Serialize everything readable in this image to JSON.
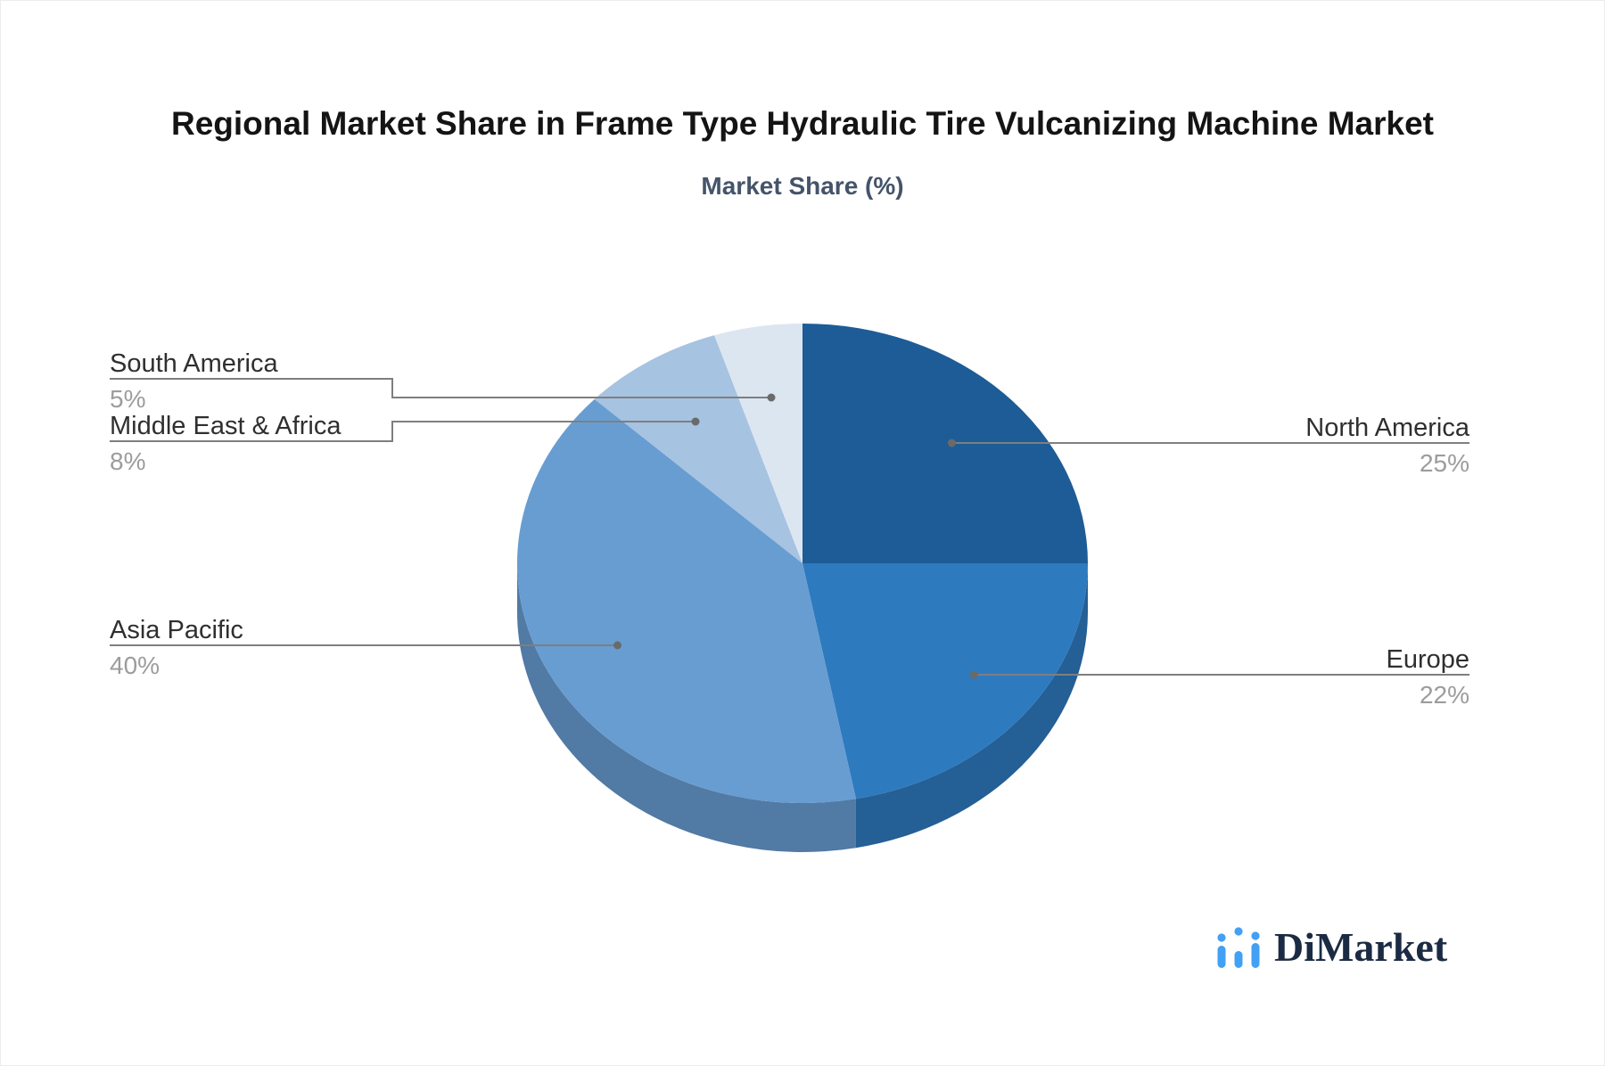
{
  "logo": {
    "text": "DiMarket"
  },
  "chart_data": {
    "type": "pie",
    "style": "3d",
    "title": "Regional Market Share in Frame Type Hydraulic Tire Vulcanizing Machine Market",
    "subtitle": "Market Share (%)",
    "unit": "%",
    "start_angle_deg": 0,
    "direction": "clockwise",
    "legend_position": "none",
    "series": [
      {
        "name": "North America",
        "value": 25,
        "pct_label": "25%",
        "color": "#1d5c96",
        "label_side": "right"
      },
      {
        "name": "Europe",
        "value": 22,
        "pct_label": "22%",
        "color": "#2e7abf",
        "label_side": "right"
      },
      {
        "name": "Asia Pacific",
        "value": 40,
        "pct_label": "40%",
        "color": "#689dd2",
        "label_side": "left"
      },
      {
        "name": "Middle East & Africa",
        "value": 8,
        "pct_label": "8%",
        "color": "#a6c3e1",
        "label_side": "left"
      },
      {
        "name": "South America",
        "value": 5,
        "pct_label": "5%",
        "color": "#dce6f1",
        "label_side": "left"
      }
    ],
    "leader_line_color": "#7f7f7f",
    "leader_dot_color": "#6a6a6a"
  }
}
